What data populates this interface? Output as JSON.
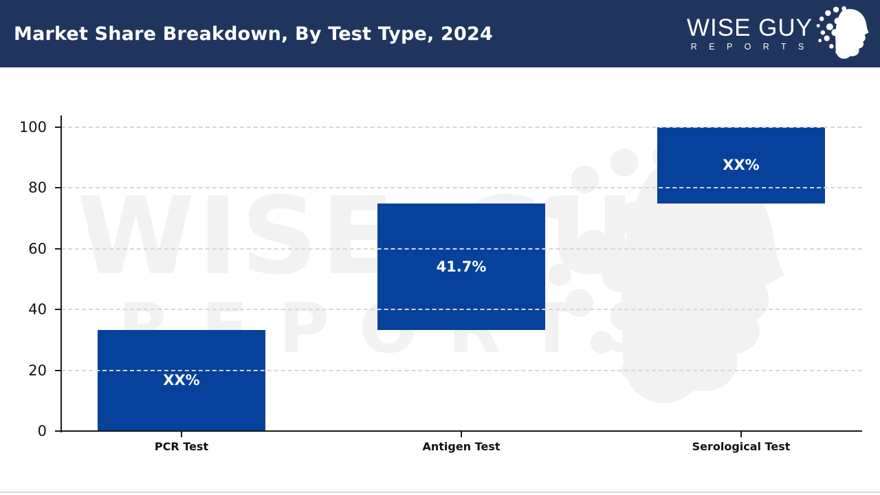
{
  "header": {
    "title": "Market Share Breakdown, By Test Type, 2024",
    "bg_color": "#20355e",
    "logo": {
      "brand_line1": "WISE GUY",
      "brand_line2": "R E P O R T S",
      "icon": "dotted-face-profile-icon"
    }
  },
  "watermark": {
    "line1": "WISE GUY",
    "line2": "REPORTS",
    "icon": "dotted-face-profile-icon",
    "color": "#f2f2f2"
  },
  "chart_data": {
    "type": "bar",
    "subtype": "waterfall",
    "title": "Market Share Breakdown, By Test Type, 2024",
    "categories": [
      "PCR Test",
      "Antigen Test",
      "Serological Test"
    ],
    "segments": [
      {
        "category": "PCR Test",
        "start": 0,
        "end": 33.3,
        "value": 33.3,
        "label": "XX%"
      },
      {
        "category": "Antigen Test",
        "start": 33.3,
        "end": 75,
        "value": 41.7,
        "label": "41.7%"
      },
      {
        "category": "Serological Test",
        "start": 75,
        "end": 100,
        "value": 25,
        "label": "XX%"
      }
    ],
    "yticks": [
      0,
      20,
      40,
      60,
      80,
      100
    ],
    "ylim": [
      0,
      104
    ],
    "xlabel": "",
    "ylabel": "",
    "legend": "none",
    "grid": "dashed-horizontal-over-bars",
    "bar_color": "#06419b",
    "bar_label_color": "#ffffff",
    "axis_color": "#1a1a1a"
  }
}
